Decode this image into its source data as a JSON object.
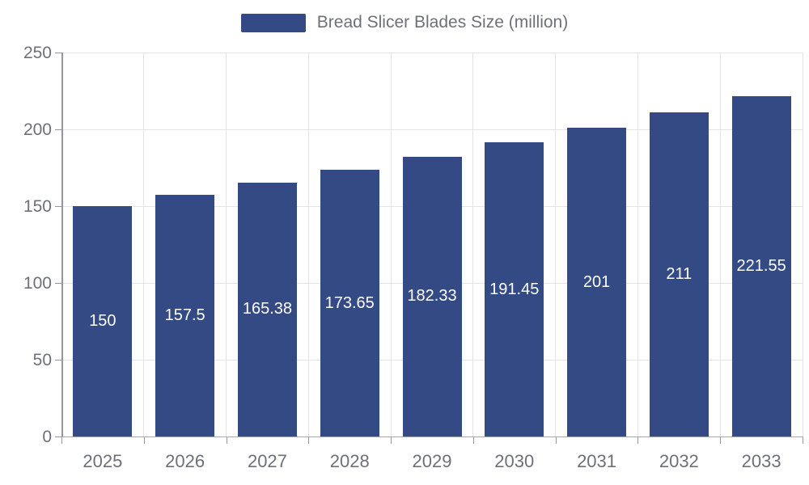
{
  "chart_data": {
    "type": "bar",
    "title": "Bread Slicer Blades Size (million)",
    "categories": [
      "2025",
      "2026",
      "2027",
      "2028",
      "2029",
      "2030",
      "2031",
      "2032",
      "2033"
    ],
    "values": [
      150,
      157.5,
      165.38,
      173.65,
      182.33,
      191.45,
      201,
      211,
      221.55
    ],
    "bar_labels": [
      "150",
      "157.5",
      "165.38",
      "173.65",
      "182.33",
      "191.45",
      "201",
      "211",
      "221.55"
    ],
    "xlabel": "",
    "ylabel": "",
    "ylim": [
      0,
      250
    ],
    "yticks": [
      0,
      50,
      100,
      150,
      200,
      250
    ],
    "grid": true,
    "legend_position": "top-center",
    "colors": {
      "bar": "#344A85",
      "bar_label_text": "#ffffff",
      "axis_text": "#6E7079",
      "gridline": "#E2E2E8",
      "axis_line": "#94969E",
      "background": "#ffffff"
    }
  }
}
